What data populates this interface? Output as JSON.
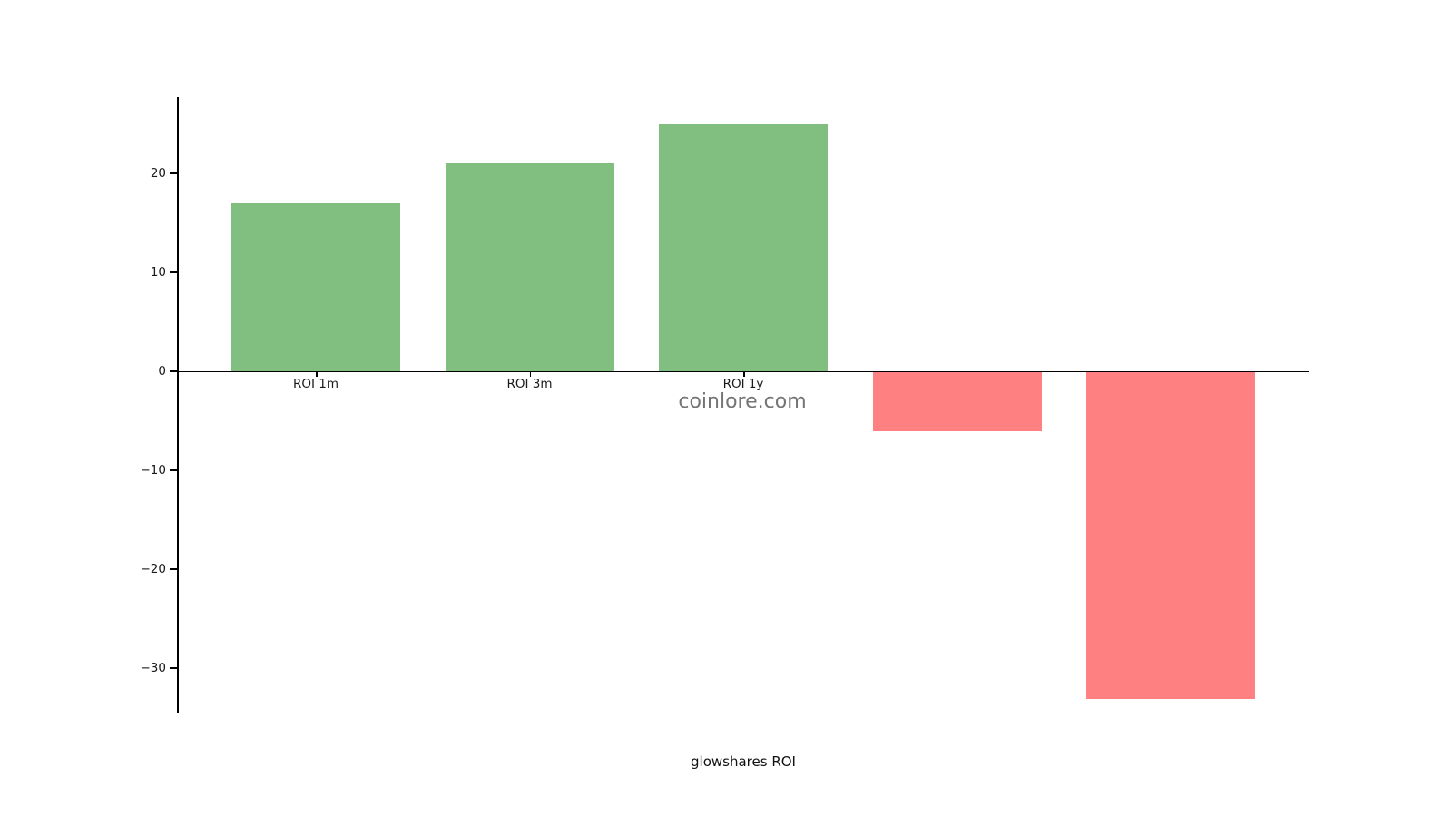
{
  "watermark": "coinlore.com",
  "colors": {
    "positive_bar": "#80bf80",
    "negative_bar": "#ff8080",
    "axis": "#000000",
    "tick_text": "#1a1a1a",
    "watermark_text": "#757575"
  },
  "chart_data": {
    "type": "bar",
    "categories": [
      "ROI 1m",
      "ROI 3m",
      "ROI 1y",
      "",
      ""
    ],
    "values": [
      17,
      21,
      25,
      -6,
      -33
    ],
    "title": "",
    "xlabel": "glowshares ROI",
    "ylabel": "",
    "yticks": [
      20,
      10,
      0,
      -10,
      -20,
      -30
    ],
    "ylim": [
      -34.5,
      27.7
    ],
    "grid": false,
    "legend_position": "none",
    "bar_color_rule": "green if positive, red if negative"
  }
}
